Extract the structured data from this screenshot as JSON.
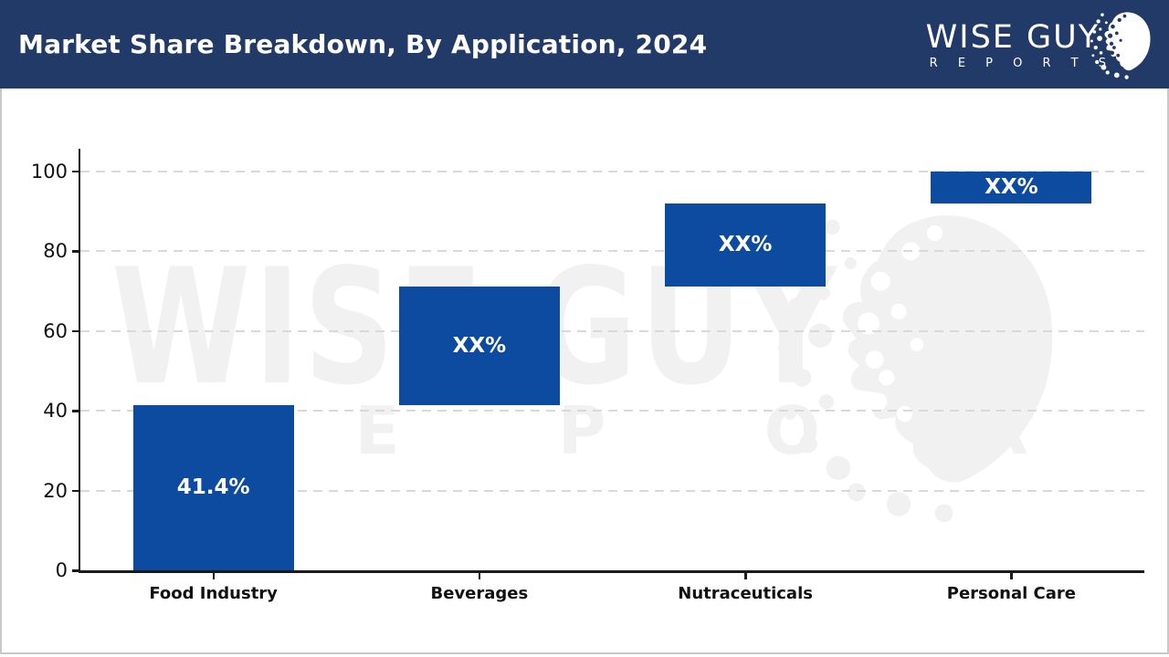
{
  "header": {
    "title": "Market Share Breakdown, By Application, 2024",
    "bg_color": "#223a68",
    "logo": {
      "line1": "WISE GUY",
      "line2": "R E P O R T S"
    }
  },
  "watermark": {
    "line1": "WISE GUY",
    "line2": "R E P O R T S"
  },
  "chart_data": {
    "type": "bar",
    "subtype": "waterfall",
    "title": "Market Share Breakdown, By Application, 2024",
    "categories": [
      "Food Industry",
      "Beverages",
      "Nutraceuticals",
      "Personal Care"
    ],
    "segments": [
      {
        "category": "Food Industry",
        "start": 0,
        "end": 41.4,
        "value": 41.4,
        "label": "41.4%"
      },
      {
        "category": "Beverages",
        "start": 41.4,
        "end": 71,
        "value": 29.6,
        "label": "XX%"
      },
      {
        "category": "Nutraceuticals",
        "start": 71,
        "end": 92,
        "value": 21,
        "label": "XX%"
      },
      {
        "category": "Personal Care",
        "start": 92,
        "end": 100,
        "value": 8,
        "label": "XX%"
      }
    ],
    "y_ticks": [
      0,
      20,
      40,
      60,
      80,
      100
    ],
    "ylim": [
      0,
      105.5
    ],
    "xlabel": "",
    "ylabel": "",
    "legend": "none",
    "grid": {
      "horizontal": true,
      "style": "dashed",
      "color": "#d9d9d9"
    },
    "bar_color": "#0c4b9f",
    "bar_label_color": "#ffffff",
    "axis_color": "#1a1a1a"
  }
}
